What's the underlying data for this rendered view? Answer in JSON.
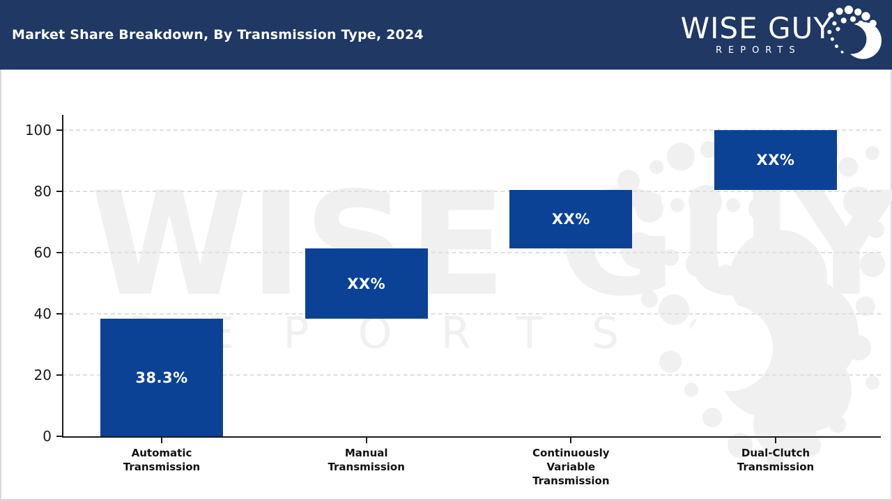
{
  "header": {
    "title": "Market Share Breakdown, By Transmission Type, 2024",
    "logo": {
      "wordmark": "WISE GUY",
      "subtext": "REPORTS"
    }
  },
  "watermark": {
    "line1": "WISE GUY",
    "line2": "REPORTS"
  },
  "colors": {
    "header_bg": "#1f3864",
    "bar": "#0b4295",
    "bar_label": "#ffffff",
    "grid": "#dedede",
    "axis": "#1a1a1a",
    "watermark": "#f0f0f0",
    "frame_border": "#d9d9d9"
  },
  "chart_data": {
    "type": "bar",
    "subtype": "waterfall",
    "title": "Market Share Breakdown, By Transmission Type, 2024",
    "xlabel": "",
    "ylabel": "",
    "ylim": [
      0,
      105
    ],
    "yticks": [
      0,
      20,
      40,
      60,
      80,
      100
    ],
    "grid": "horizontal dashed, behind bars",
    "legend": "none",
    "categories": [
      [
        "Automatic",
        "Transmission"
      ],
      [
        "Manual",
        "Transmission"
      ],
      [
        "Continuously",
        "Variable",
        "Transmission"
      ],
      [
        "Dual-Clutch",
        "Transmission"
      ]
    ],
    "segments": [
      {
        "name": "Automatic Transmission",
        "start": 0,
        "end": 38.3,
        "label": "38.3%"
      },
      {
        "name": "Manual Transmission",
        "start": 38.3,
        "end": 61.4,
        "label": "XX%"
      },
      {
        "name": "Continuously Variable Transmission",
        "start": 61.4,
        "end": 80.5,
        "label": "XX%"
      },
      {
        "name": "Dual-Clutch Transmission",
        "start": 80.5,
        "end": 100,
        "label": "XX%"
      }
    ]
  }
}
